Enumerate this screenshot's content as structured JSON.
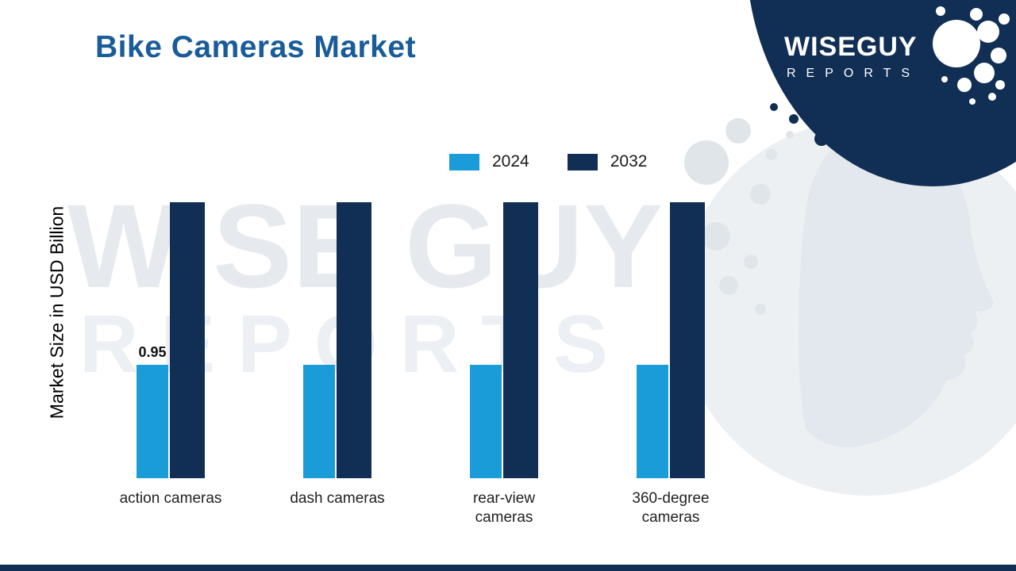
{
  "logo": {
    "line1": "WISEGUY",
    "line2": "REPORTS"
  },
  "watermark": {
    "line1": "WISE GUY",
    "line2": "REPORTS"
  },
  "colors": {
    "title": "#1a5c99",
    "series_2024": "#1a9cd8",
    "series_2032": "#112e54",
    "watermark_gray": "#e6eaee"
  },
  "chart_data": {
    "type": "bar",
    "title": "Bike Cameras Market",
    "ylabel": "Market Size in USD Billion",
    "xlabel": "",
    "categories": [
      "action cameras",
      "dash cameras",
      "rear-view cameras",
      "360-degree cameras"
    ],
    "series": [
      {
        "name": "2024",
        "color": "#1a9cd8",
        "values": [
          0.95,
          0.95,
          0.95,
          0.95
        ]
      },
      {
        "name": "2032",
        "color": "#112e54",
        "values": [
          2.31,
          2.31,
          2.31,
          2.31
        ]
      }
    ],
    "annotations": [
      {
        "category_index": 0,
        "series": "2024",
        "text": "0.95"
      }
    ],
    "ylim": [
      0,
      2.31
    ],
    "grid": false,
    "legend_position": "top"
  }
}
